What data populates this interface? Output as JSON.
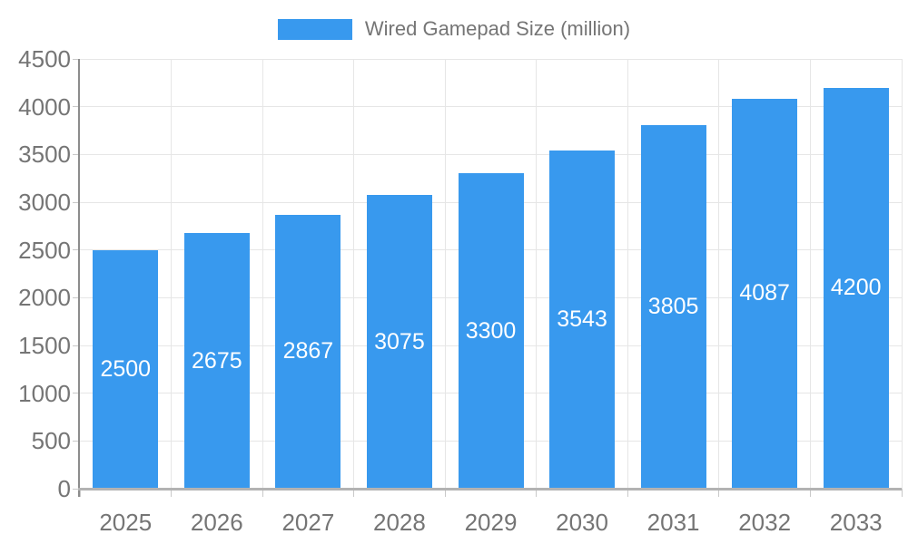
{
  "legend": {
    "label": "Wired Gamepad Size (million)"
  },
  "colors": {
    "bar": "#3899EE",
    "grid": "#e6e6e6",
    "axis_label": "#757575",
    "y_axis_line": "#8c8c8c",
    "x_axis_line": "#b3b3b3",
    "tick": "#c9c9c9",
    "bar_label": "#ffffff",
    "background": "#ffffff"
  },
  "chart_data": {
    "type": "bar",
    "title": "Wired Gamepad Size (million)",
    "categories": [
      "2025",
      "2026",
      "2027",
      "2028",
      "2029",
      "2030",
      "2031",
      "2032",
      "2033"
    ],
    "values": [
      2500,
      2675,
      2867,
      3075,
      3300,
      3543,
      3805,
      4087,
      4200
    ],
    "xlabel": "",
    "ylabel": "",
    "ylim": [
      0,
      4500
    ],
    "ytick_step": 500,
    "ytick_labels": [
      "0",
      "500",
      "1000",
      "1500",
      "2000",
      "2500",
      "3000",
      "3500",
      "4000",
      "4500"
    ],
    "grid": true,
    "legend_entries": [
      "Wired Gamepad Size (million)"
    ],
    "legend_position": "top-center",
    "bar_labels": "inside-center"
  }
}
